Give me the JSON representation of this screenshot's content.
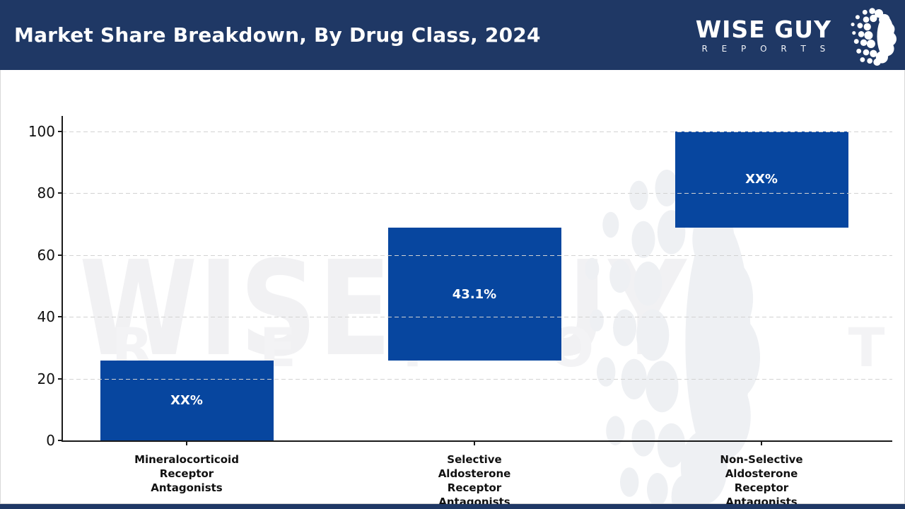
{
  "header": {
    "title": "Market Share Breakdown, By Drug Class, 2024",
    "bg_color": "#1F3865",
    "logo_line1": "WISE GUY",
    "logo_line2": "R E P O R T S"
  },
  "watermark": {
    "line1": "WISE GUY",
    "line2": "R E P O R T S"
  },
  "chart_data": {
    "type": "bar",
    "variant": "waterfall",
    "title": "Market Share Breakdown, By Drug Class, 2024",
    "categories": [
      "Mineralocorticoid\nReceptor\nAntagonists",
      "Selective\nAldosterone\nReceptor\nAntagonists",
      "Non-Selective\nAldosterone\nReceptor\nAntagonists"
    ],
    "segments": [
      {
        "category": "Mineralocorticoid Receptor Antagonists",
        "start": 0,
        "end": 25.8,
        "label": "XX%"
      },
      {
        "category": "Selective Aldosterone Receptor Antagonists",
        "start": 25.8,
        "end": 68.9,
        "label": "43.1%"
      },
      {
        "category": "Non-Selective Aldosterone Receptor Antagonists",
        "start": 68.9,
        "end": 100,
        "label": "XX%"
      }
    ],
    "yticks": [
      "0",
      "20",
      "40",
      "60",
      "80",
      "100"
    ],
    "ytick_values": [
      0,
      20,
      40,
      60,
      80,
      100
    ],
    "ylim": [
      0,
      105
    ],
    "xlabel": "",
    "ylabel": "",
    "grid": true,
    "grid_style": "dashed",
    "legend": false,
    "bar_color": "#07469F",
    "grid_color": "#D2D2D2",
    "label_color": "#FFFFFF"
  }
}
